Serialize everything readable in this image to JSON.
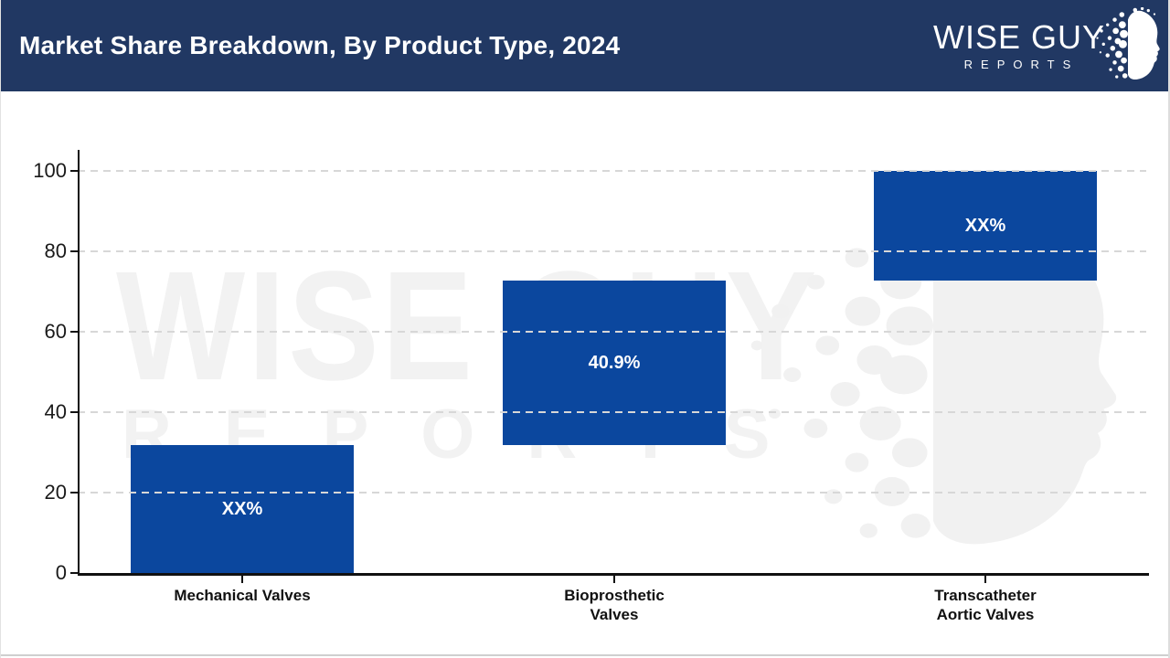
{
  "header": {
    "title": "Market Share Breakdown, By Product Type, 2024",
    "logo": {
      "line1": "WISE GUY",
      "line2": "REPORTS"
    },
    "bg_color": "#213863"
  },
  "watermark": {
    "line1": "WISE GUY",
    "line2": "REPORTS"
  },
  "chart_data": {
    "type": "bar",
    "variant": "stacked-waterfall",
    "title": "Market Share Breakdown, By Product Type, 2024",
    "categories": [
      "Mechanical Valves",
      "Bioprosthetic\nValves",
      "Transcatheter\nAortic Valves"
    ],
    "segments": [
      {
        "category": "Mechanical Valves",
        "start": 0,
        "end": 31.8,
        "value": 31.8,
        "value_label": "XX%"
      },
      {
        "category": "Bioprosthetic Valves",
        "start": 31.8,
        "end": 72.7,
        "value": 40.9,
        "value_label": "40.9%"
      },
      {
        "category": "Transcatheter Aortic Valves",
        "start": 72.7,
        "end": 100,
        "value": 27.3,
        "value_label": "XX%"
      }
    ],
    "y_ticks": [
      0,
      20,
      40,
      60,
      80,
      100
    ],
    "ylim": [
      0,
      105
    ],
    "xlabel": "",
    "ylabel": "",
    "legend": null,
    "grid": {
      "axis": "y",
      "style": "dashed",
      "drawn_over_bars": true
    },
    "bar_color": "#0b479e"
  },
  "colors": {
    "header_bg": "#213863",
    "bar": "#0b479e",
    "grid": "#d7d7d7",
    "axis": "#111111",
    "watermark": "#f2f2f2",
    "bar_label_text": "#ffffff"
  }
}
